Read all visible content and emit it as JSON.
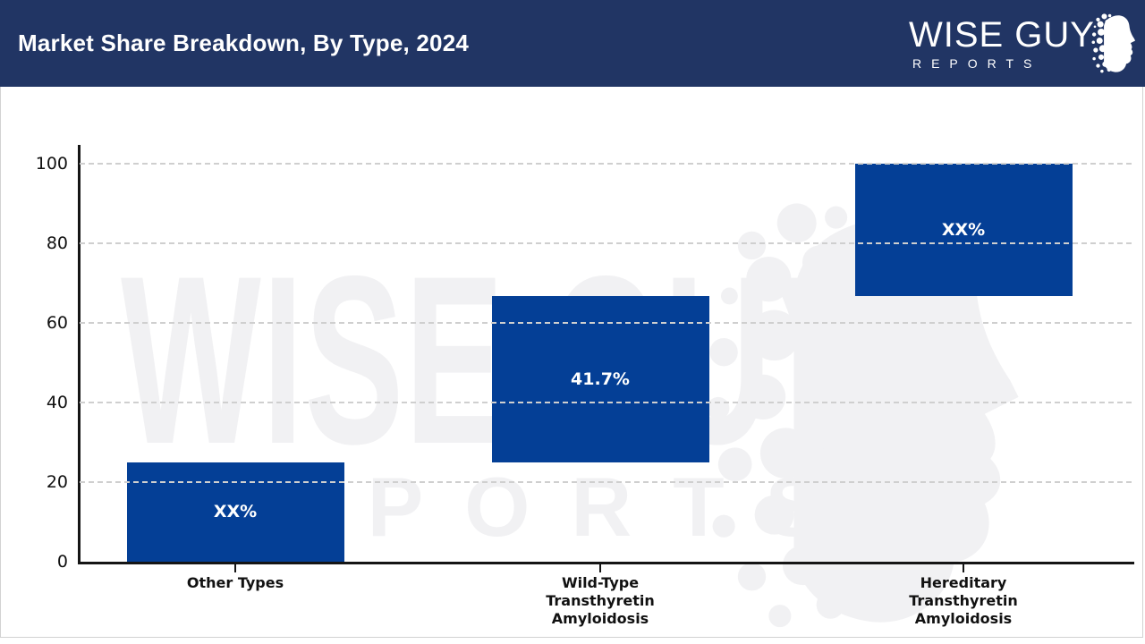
{
  "header": {
    "title": "Market Share Breakdown, By Type, 2024",
    "background_color": "#213564",
    "logo": {
      "line1": "WISE GUY",
      "line2": "REPORTS"
    }
  },
  "watermark": {
    "line1": "WISE GUY",
    "line2": "REPORTS"
  },
  "chart_data": {
    "type": "bar",
    "variant": "floating-segment-waterfall",
    "title": "Market Share Breakdown, By Type, 2024",
    "categories": [
      {
        "lines": [
          "Other Types"
        ]
      },
      {
        "lines": [
          "Wild-Type",
          "Transthyretin",
          "Amyloidosis"
        ]
      },
      {
        "lines": [
          "Hereditary",
          "Transthyretin",
          "Amyloidosis"
        ]
      }
    ],
    "segments": [
      {
        "category": "Other Types",
        "start": 0,
        "end": 25,
        "value_label": "XX%"
      },
      {
        "category": "Wild-Type Transthyretin Amyloidosis",
        "start": 25,
        "end": 66.7,
        "value_label": "41.7%"
      },
      {
        "category": "Hereditary Transthyretin Amyloidosis",
        "start": 66.7,
        "end": 100,
        "value_label": "XX%"
      }
    ],
    "ylim": [
      0,
      100
    ],
    "yticks": [
      0,
      20,
      40,
      60,
      80,
      100
    ],
    "grid": "horizontal-dashed",
    "bar_color": "#043F96",
    "bar_label_color": "#ffffff",
    "axis_color": "#151515",
    "grid_color": "#cfcfcf"
  }
}
